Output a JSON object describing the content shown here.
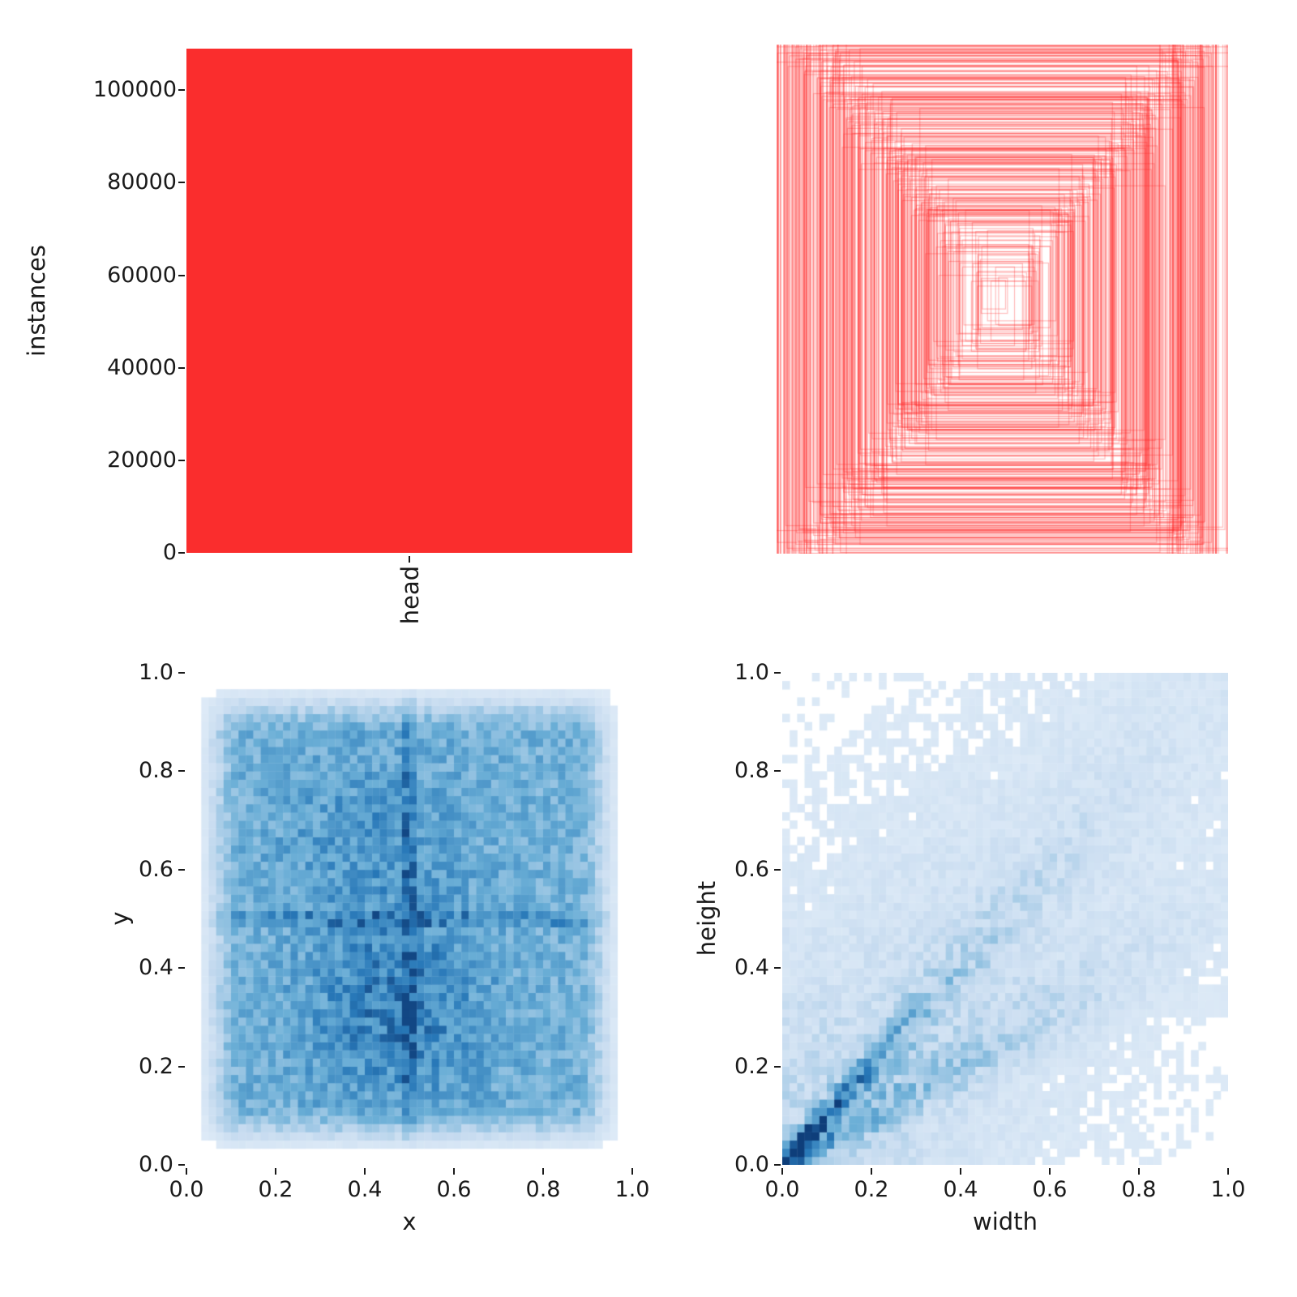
{
  "figure": {
    "background": "#ffffff"
  },
  "chart_data": [
    {
      "id": "instances-per-class",
      "type": "bar",
      "title": "",
      "xlabel": "",
      "ylabel": "instances",
      "categories": [
        "head"
      ],
      "values": [
        109000
      ],
      "ylim": [
        0,
        109000
      ],
      "yticks": [
        0,
        20000,
        40000,
        60000,
        80000,
        100000
      ],
      "ytick_labels": [
        "0",
        "20000",
        "40000",
        "60000",
        "80000",
        "100000"
      ],
      "bar_color": "#fa2d2d"
    },
    {
      "id": "label-boxes-overlay",
      "type": "rectangles",
      "title": "",
      "description": "overlaid bounding-box outlines in normalized coordinates, concentric around the image center",
      "stroke_color": "#ff2222",
      "stroke_alpha": 0.3,
      "count": 380,
      "center": [
        0.5,
        0.5
      ],
      "center_jitter_sd": 0.025,
      "size_cluster_means": [
        0.97,
        0.8,
        0.62,
        0.45,
        0.28,
        0.12
      ],
      "size_cluster_weights": [
        0.16,
        0.2,
        0.2,
        0.2,
        0.14,
        0.1
      ],
      "size_cluster_sd": 0.05,
      "height_to_width_ratio": [
        1.02,
        1.32
      ],
      "seed": 42
    },
    {
      "id": "xy-centers-heatmap",
      "type": "heatmap",
      "title": "",
      "xlabel": "x",
      "ylabel": "y",
      "xlim": [
        0,
        1
      ],
      "ylim": [
        0,
        1
      ],
      "xticks": [
        "0.0",
        "0.2",
        "0.4",
        "0.6",
        "0.8",
        "1.0"
      ],
      "yticks": [
        "0.0",
        "0.2",
        "0.4",
        "0.6",
        "0.8",
        "1.0"
      ],
      "bins": 60,
      "colormap": "Blues",
      "colormap_stops": [
        [
          0,
          "#f7fbff"
        ],
        [
          0.25,
          "#c8dcf0"
        ],
        [
          0.5,
          "#6aaed6"
        ],
        [
          0.75,
          "#2878b8"
        ],
        [
          1,
          "#08306b"
        ]
      ],
      "color_range": [
        0.12,
        0.8
      ],
      "seed": 7,
      "density_model": {
        "plateau_rise": [
          0.015,
          0.13
        ],
        "plateau_fall": [
          0.87,
          0.985
        ],
        "base_amp": 0.45,
        "blob": {
          "cx": 0.47,
          "cy": 0.32,
          "sx": 0.14,
          "sy": 0.14,
          "amp": 0.3
        },
        "blob2": {
          "cx": 0.42,
          "cy": 0.68,
          "sx": 0.15,
          "sy": 0.12,
          "amp": 0.16
        },
        "cross_x": {
          "pos": 0.5,
          "halfwidth": 0.009,
          "amp": 0.18
        },
        "cross_y": {
          "pos": 0.5,
          "halfwidth": 0.009,
          "amp": 0.15
        },
        "noise": [
          0.7,
          0.6
        ],
        "empty_below": 0.022
      }
    },
    {
      "id": "width-height-heatmap",
      "type": "heatmap",
      "title": "",
      "xlabel": "width",
      "ylabel": "height",
      "xlim": [
        0,
        1
      ],
      "ylim": [
        0,
        1
      ],
      "xticks": [
        "0.0",
        "0.2",
        "0.4",
        "0.6",
        "0.8",
        "1.0"
      ],
      "yticks": [
        "0.0",
        "0.2",
        "0.4",
        "0.6",
        "0.8",
        "1.0"
      ],
      "bins": 60,
      "colormap": "Blues",
      "colormap_stops": [
        [
          0,
          "#f7fbff"
        ],
        [
          0.25,
          "#c8dcf0"
        ],
        [
          0.5,
          "#6aaed6"
        ],
        [
          0.75,
          "#2878b8"
        ],
        [
          1,
          "#08306b"
        ]
      ],
      "color_range": [
        0.1,
        0.85
      ],
      "seed": 1337,
      "density_model": {
        "ridge1": {
          "slope": 1.0,
          "amp": 0.95,
          "w0": 0.015,
          "wgrow": 0.09,
          "decay": 0.22
        },
        "ridge2": {
          "slope": 0.52,
          "amp": 0.45,
          "w0": 0.02,
          "wgrow": 0.08,
          "decay": 0.3
        },
        "band": {
          "amp": 0.16,
          "sd": 0.35,
          "decay": 0.9
        },
        "floor": {
          "amp": 0.05,
          "decay": 1.5
        },
        "noise": [
          0.55,
          0.9
        ],
        "empty_below": 0.05
      }
    }
  ]
}
